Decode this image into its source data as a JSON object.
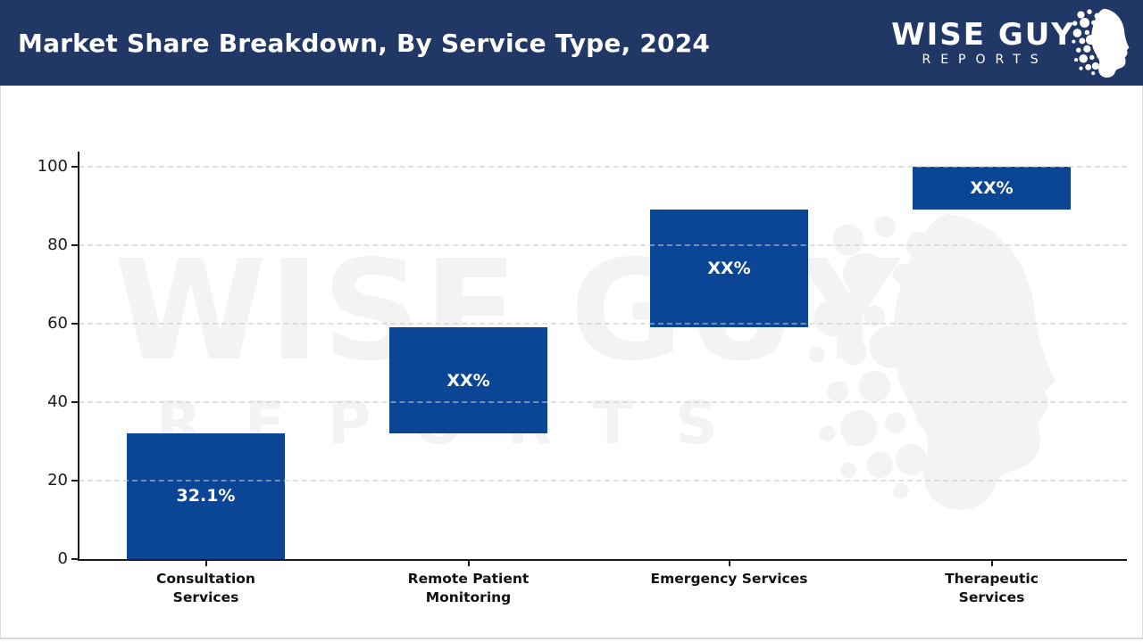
{
  "header": {
    "title": "Market Share Breakdown, By Service Type, 2024",
    "bg_color": "#213765",
    "logo": {
      "wordmark": "WISE GUY",
      "sub": "REPORTS"
    }
  },
  "watermark": {
    "wordmark": "WISE GUY",
    "sub": "REPORTS"
  },
  "chart_data": {
    "type": "bar",
    "variant": "waterfall-floating-segments",
    "title": "Market Share Breakdown, By Service Type, 2024",
    "categories": [
      "Consultation\nServices",
      "Remote Patient\nMonitoring",
      "Emergency Services",
      "Therapeutic\nServices"
    ],
    "series": [
      {
        "name": "Market share (%)",
        "segments": [
          {
            "category": "Consultation Services",
            "start": 0,
            "end": 32.1,
            "label": "32.1%"
          },
          {
            "category": "Remote Patient Monitoring",
            "start": 32.1,
            "end": 59,
            "label": "XX%"
          },
          {
            "category": "Emergency Services",
            "start": 59,
            "end": 89,
            "label": "XX%"
          },
          {
            "category": "Therapeutic Services",
            "start": 89,
            "end": 100,
            "label": "XX%"
          }
        ]
      }
    ],
    "ylim": [
      0,
      100
    ],
    "yticks": [
      0,
      20,
      40,
      60,
      80,
      100
    ],
    "xlabel": "",
    "ylabel": "",
    "grid": "horizontal-dashed",
    "legend": "none",
    "bar_color": "#0b4696",
    "label_color": "#ffffff",
    "axis_color": "#1a1a1a",
    "grid_color": "#c9c9c9"
  }
}
